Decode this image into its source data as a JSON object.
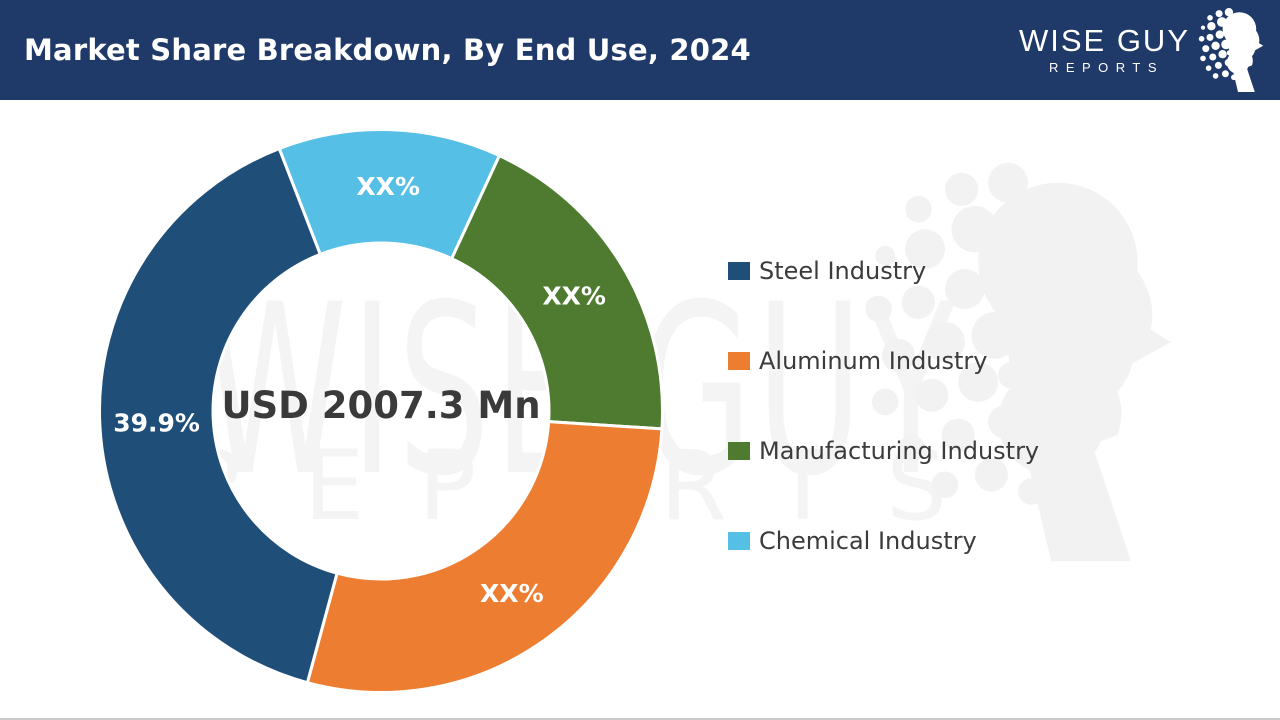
{
  "header": {
    "title": "Market Share Breakdown, By End Use, 2024",
    "background": "#1F3969",
    "logo": {
      "line1": "WISE GUY",
      "line2": "REPORTS"
    }
  },
  "watermark": {
    "line1": "WISE GUY",
    "line2": "REPORTS"
  },
  "chart_data": {
    "type": "pie",
    "subtype": "donut",
    "title": "Market Share Breakdown, By End Use, 2024",
    "center_label": "USD 2007.3 Mn",
    "start_angle_deg": -21.2,
    "slices": [
      {
        "name": "Chemical Industry",
        "label": "XX%",
        "value": 12.8,
        "color": "#56BFE6"
      },
      {
        "name": "Manufacturing Industry",
        "label": "XX%",
        "value": 19.1,
        "color": "#4E7B30"
      },
      {
        "name": "Aluminum Industry",
        "label": "XX%",
        "value": 28.2,
        "color": "#ED7D31"
      },
      {
        "name": "Steel Industry",
        "label": "39.9%",
        "value": 39.9,
        "color": "#1F4E79"
      }
    ],
    "legend": [
      {
        "label": "Steel Industry",
        "color": "#1F4E79"
      },
      {
        "label": "Aluminum Industry",
        "color": "#ED7D31"
      },
      {
        "label": "Manufacturing Industry",
        "color": "#4E7B30"
      },
      {
        "label": "Chemical Industry",
        "color": "#56BFE6"
      }
    ],
    "legend_position": "right",
    "label_color": "#ffffff",
    "center_label_color": "#3a3a3a"
  }
}
